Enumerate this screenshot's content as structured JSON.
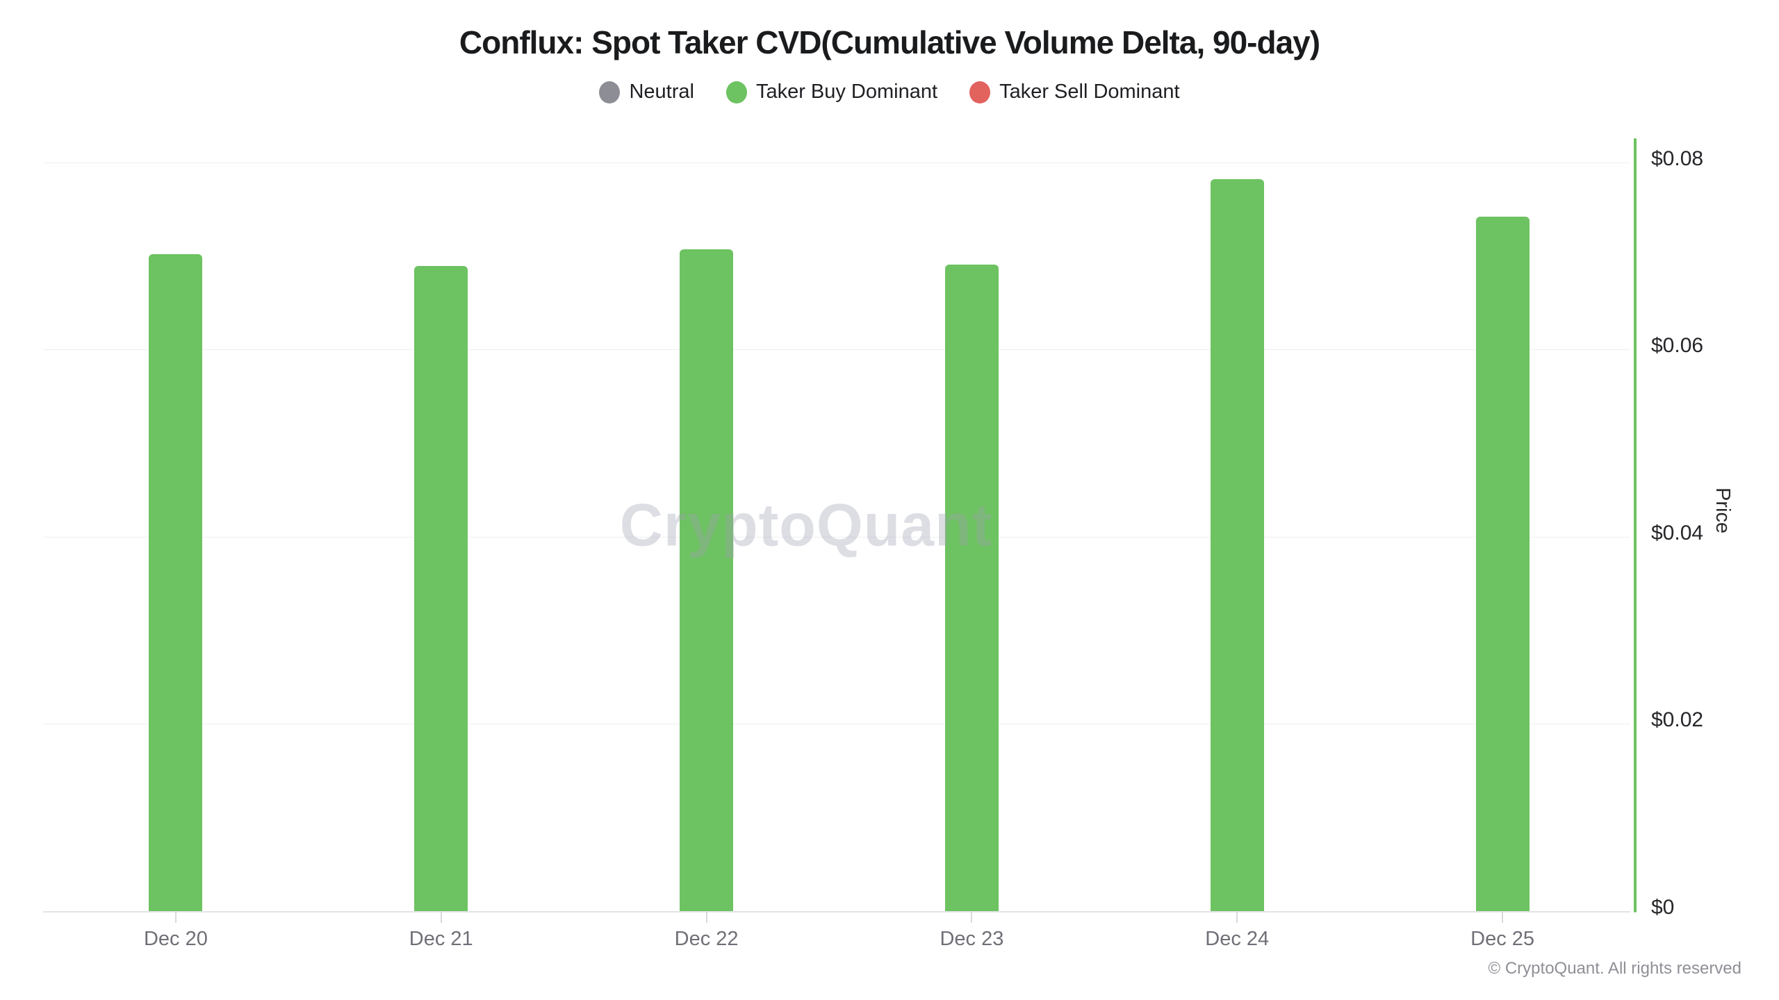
{
  "title": "Conflux: Spot Taker CVD(Cumulative Volume Delta, 90-day)",
  "legend": {
    "items": [
      {
        "label": "Neutral",
        "color": "#8d8d95"
      },
      {
        "label": "Taker Buy Dominant",
        "color": "#6dc261"
      },
      {
        "label": "Taker Sell Dominant",
        "color": "#e2625e"
      }
    ]
  },
  "watermark": "CryptoQuant",
  "copyright": "© CryptoQuant. All rights reserved",
  "y_axis": {
    "label": "Price",
    "axis_color": "#6dc261",
    "ticks": [
      {
        "label": "$0.08",
        "value": 0.08
      },
      {
        "label": "$0.06",
        "value": 0.06
      },
      {
        "label": "$0.04",
        "value": 0.04
      },
      {
        "label": "$0.02",
        "value": 0.02
      },
      {
        "label": "$0",
        "value": 0
      }
    ]
  },
  "chart_data": {
    "type": "bar",
    "categories": [
      "Dec 20",
      "Dec 21",
      "Dec 22",
      "Dec 23",
      "Dec 24",
      "Dec 25"
    ],
    "series": [
      {
        "name": "Taker Buy Dominant",
        "color": "#6dc261",
        "values": [
          0.0702,
          0.0689,
          0.0707,
          0.0691,
          0.0782,
          0.0742
        ]
      }
    ],
    "title": "Conflux: Spot Taker CVD(Cumulative Volume Delta, 90-day)",
    "xlabel": "",
    "ylabel": "Price",
    "ylim": [
      0,
      0.083
    ],
    "y_tick_step": 0.02,
    "grid": true,
    "legend_position": "top",
    "legend_entries": [
      "Neutral",
      "Taker Buy Dominant",
      "Taker Sell Dominant"
    ],
    "bar_states": [
      "buy",
      "buy",
      "buy",
      "buy",
      "buy",
      "buy"
    ]
  }
}
